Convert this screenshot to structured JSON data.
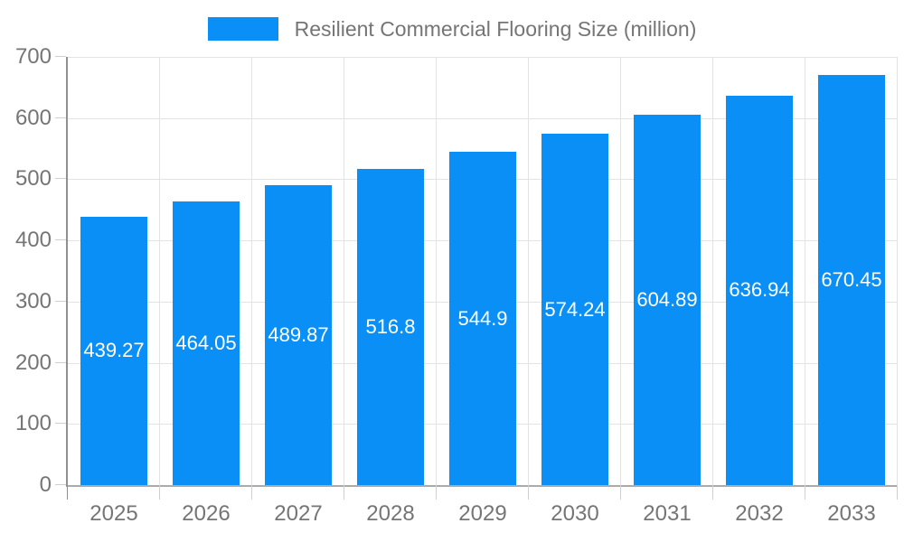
{
  "legend": {
    "label": "Resilient Commercial Flooring Size (million)"
  },
  "chart_data": {
    "type": "bar",
    "title": "Resilient Commercial Flooring Size (million)",
    "categories": [
      "2025",
      "2026",
      "2027",
      "2028",
      "2029",
      "2030",
      "2031",
      "2032",
      "2033"
    ],
    "values": [
      439.27,
      464.05,
      489.87,
      516.8,
      544.9,
      574.24,
      604.89,
      636.94,
      670.45
    ],
    "value_labels": [
      "439.27",
      "464.05",
      "489.87",
      "516.8",
      "544.9",
      "574.24",
      "604.89",
      "636.94",
      "670.45"
    ],
    "xlabel": "",
    "ylabel": "",
    "ylim": [
      0,
      700
    ],
    "yticks": [
      0,
      100,
      200,
      300,
      400,
      500,
      600,
      700
    ],
    "grid": true,
    "legend_position": "top-center",
    "value_label_position": "bar-center",
    "colors": {
      "bar": "#0A8FF7",
      "grid": "#E3E3E3",
      "axis": "#909090",
      "baseline": "#ABABAB",
      "tick": "#CFCFCF",
      "axis_label": "#757575",
      "value_text": "#FFFFFF",
      "background": "#FFFFFF"
    }
  }
}
